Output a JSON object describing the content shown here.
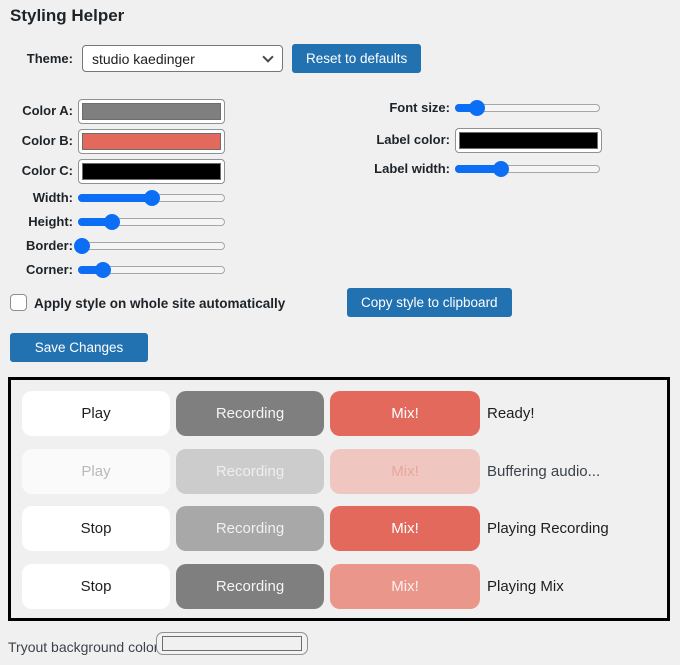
{
  "page": {
    "title": "Styling Helper"
  },
  "theme_row": {
    "label": "Theme:",
    "selected_theme": "studio kaedinger",
    "reset_button": "Reset to defaults"
  },
  "fields": {
    "color_a": {
      "label": "Color A:",
      "swatch": "#7f7f7f"
    },
    "color_b": {
      "label": "Color B:",
      "swatch": "#e2695c"
    },
    "color_c": {
      "label": "Color C:",
      "swatch": "#000000"
    },
    "width": {
      "label": "Width:",
      "percent": 50
    },
    "height": {
      "label": "Height:",
      "percent": 23
    },
    "border": {
      "label": "Border:",
      "percent": 3
    },
    "corner": {
      "label": "Corner:",
      "percent": 17
    },
    "font_size": {
      "label": "Font size:",
      "percent": 15
    },
    "label_color": {
      "label": "Label color:",
      "swatch": "#000000"
    },
    "label_width": {
      "label": "Label width:",
      "percent": 32
    }
  },
  "apply_checkbox": {
    "label": "Apply style on whole site automatically",
    "checked": false
  },
  "actions": {
    "copy_button": "Copy style to clipboard",
    "save_button": "Save Changes"
  },
  "colors": {
    "accent_blue": "#2271b1",
    "slider_blue": "#0b6ef5",
    "page_background": "#f0f0f1"
  },
  "preview": {
    "rows": [
      {
        "buttons": [
          {
            "label": "Play",
            "bg": "#ffffff",
            "fg": "#1e1e1e"
          },
          {
            "label": "Recording",
            "bg": "#7f7f7f",
            "fg": "#f5f5f5"
          },
          {
            "label": "Mix!",
            "bg": "#e2695c",
            "fg": "#ffffff"
          }
        ],
        "status": "Ready!",
        "status_color": "#1e1e1e"
      },
      {
        "buttons": [
          {
            "label": "Play",
            "bg": "#fafafa",
            "fg": "#b9b9b9"
          },
          {
            "label": "Recording",
            "bg": "#cccccc",
            "fg": "#eeeeee"
          },
          {
            "label": "Mix!",
            "bg": "#f0c6c1",
            "fg": "#e8a69d"
          }
        ],
        "status": "Buffering audio...",
        "status_color": "#3c434a"
      },
      {
        "buttons": [
          {
            "label": "Stop",
            "bg": "#ffffff",
            "fg": "#1e1e1e"
          },
          {
            "label": "Recording",
            "bg": "#a8a8a8",
            "fg": "#f0f0f0"
          },
          {
            "label": "Mix!",
            "bg": "#e2695c",
            "fg": "#ffffff"
          }
        ],
        "status": "Playing Recording",
        "status_color": "#1e1e1e"
      },
      {
        "buttons": [
          {
            "label": "Stop",
            "bg": "#ffffff",
            "fg": "#1e1e1e"
          },
          {
            "label": "Recording",
            "bg": "#7f7f7f",
            "fg": "#f5f5f5"
          },
          {
            "label": "Mix!",
            "bg": "#ea968a",
            "fg": "#fdf0ee"
          }
        ],
        "status": "Playing Mix",
        "status_color": "#1e1e1e"
      }
    ]
  },
  "tryout": {
    "label": "Tryout background color:",
    "swatch": "#f0f0f1"
  }
}
